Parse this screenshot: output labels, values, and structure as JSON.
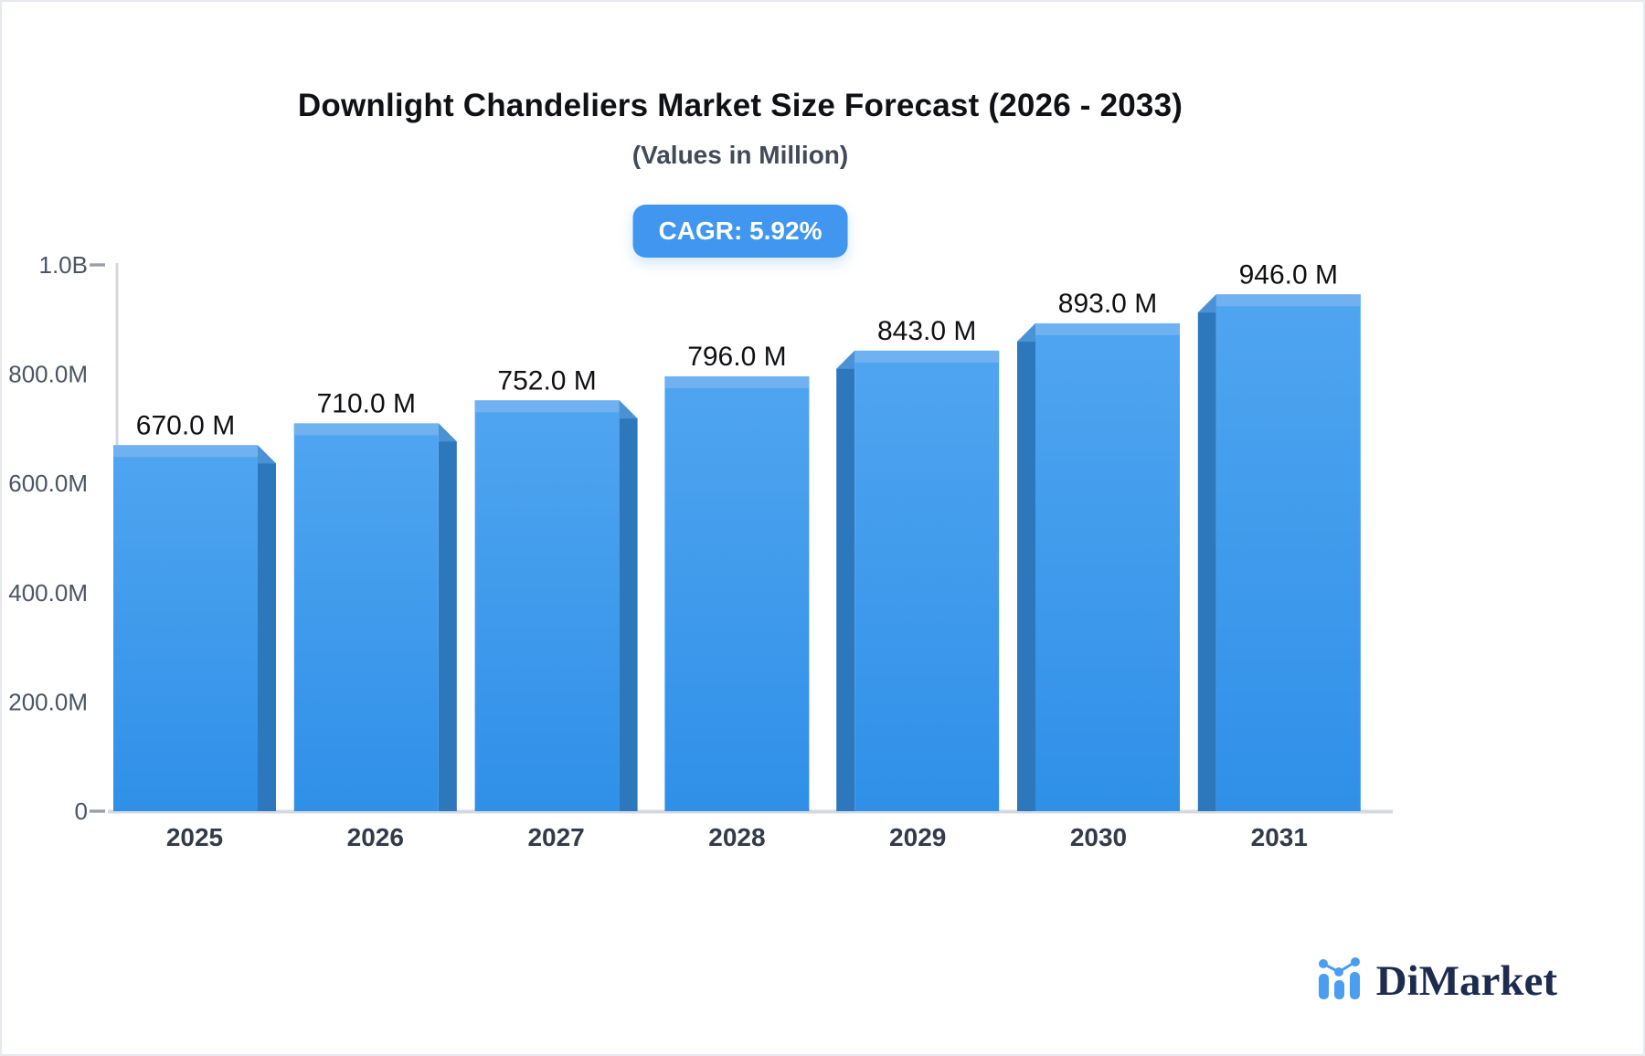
{
  "header": {
    "title": "Downlight Chandeliers Market Size Forecast (2026 - 2033)",
    "subtitle": "(Values in Million)"
  },
  "badge": {
    "label": "CAGR: 5.92%",
    "bg": "#4196ef",
    "text_color": "#ffffff"
  },
  "chart_data": {
    "type": "bar",
    "title": "Downlight Chandeliers Market Size Forecast (2026 - 2033)",
    "subtitle": "(Values in Million)",
    "categories": [
      "2025",
      "2026",
      "2027",
      "2028",
      "2029",
      "2030",
      "2031"
    ],
    "values": [
      670,
      710,
      752,
      796,
      843,
      893,
      946
    ],
    "value_labels": [
      "670.0 M",
      "710.0 M",
      "752.0 M",
      "796.0 M",
      "843.0 M",
      "893.0 M",
      "946.0 M"
    ],
    "cagr_label": "CAGR: 5.92%",
    "xlabel": "",
    "ylabel": "",
    "ylim": [
      0,
      1000
    ],
    "grid": false,
    "legend": "none",
    "yticks": [
      {
        "label": "1.0B",
        "value": 1000,
        "dash": true
      },
      {
        "label": "800.0M",
        "value": 800,
        "dash": false
      },
      {
        "label": "600.0M",
        "value": 600,
        "dash": false
      },
      {
        "label": "400.0M",
        "value": 400,
        "dash": false
      },
      {
        "label": "200.0M",
        "value": 200,
        "dash": false
      },
      {
        "label": "0",
        "value": 0,
        "dash": true
      }
    ],
    "colors": {
      "bar_top_gradient": "#50a5f0",
      "bar_bottom_gradient": "#2f90e8",
      "bar_cap": "#6fb1f1",
      "bar_side": "#2d77bc",
      "bar_bevel": "#4b92d4",
      "axis_line": "#d6d8de",
      "tick_dash": "#9aa0aa",
      "y_label": "#4b5563",
      "x_label": "#333a4a",
      "value_label": "#101114"
    }
  },
  "logo": {
    "text": "DiMarket",
    "color": "#1c2b4e",
    "icon": "mini-bar-chart-logo-icon",
    "icon_color": "#4a9def"
  }
}
